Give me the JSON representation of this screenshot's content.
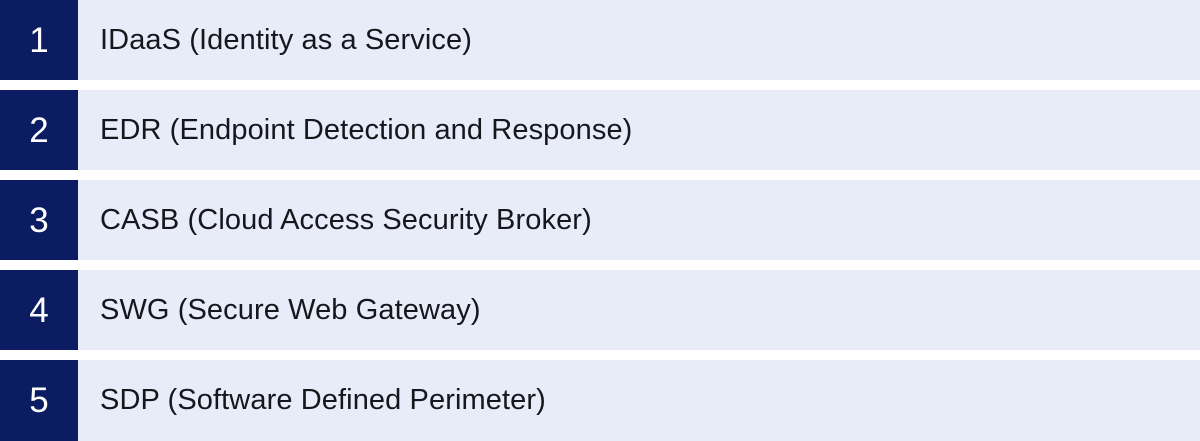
{
  "list": {
    "items": [
      {
        "number": "1",
        "label": "IDaaS (Identity as a Service)"
      },
      {
        "number": "2",
        "label": "EDR (Endpoint Detection and Response)"
      },
      {
        "number": "3",
        "label": "CASB (Cloud Access Security Broker)"
      },
      {
        "number": "4",
        "label": "SWG (Secure Web Gateway)"
      },
      {
        "number": "5",
        "label": "SDP (Software Defined Perimeter)"
      }
    ]
  },
  "colors": {
    "navy_badge": "#0b1c63",
    "row_background": "#e7ecf8",
    "label_text": "#16161d",
    "number_text": "#ffffff",
    "gap_background": "#ffffff"
  }
}
